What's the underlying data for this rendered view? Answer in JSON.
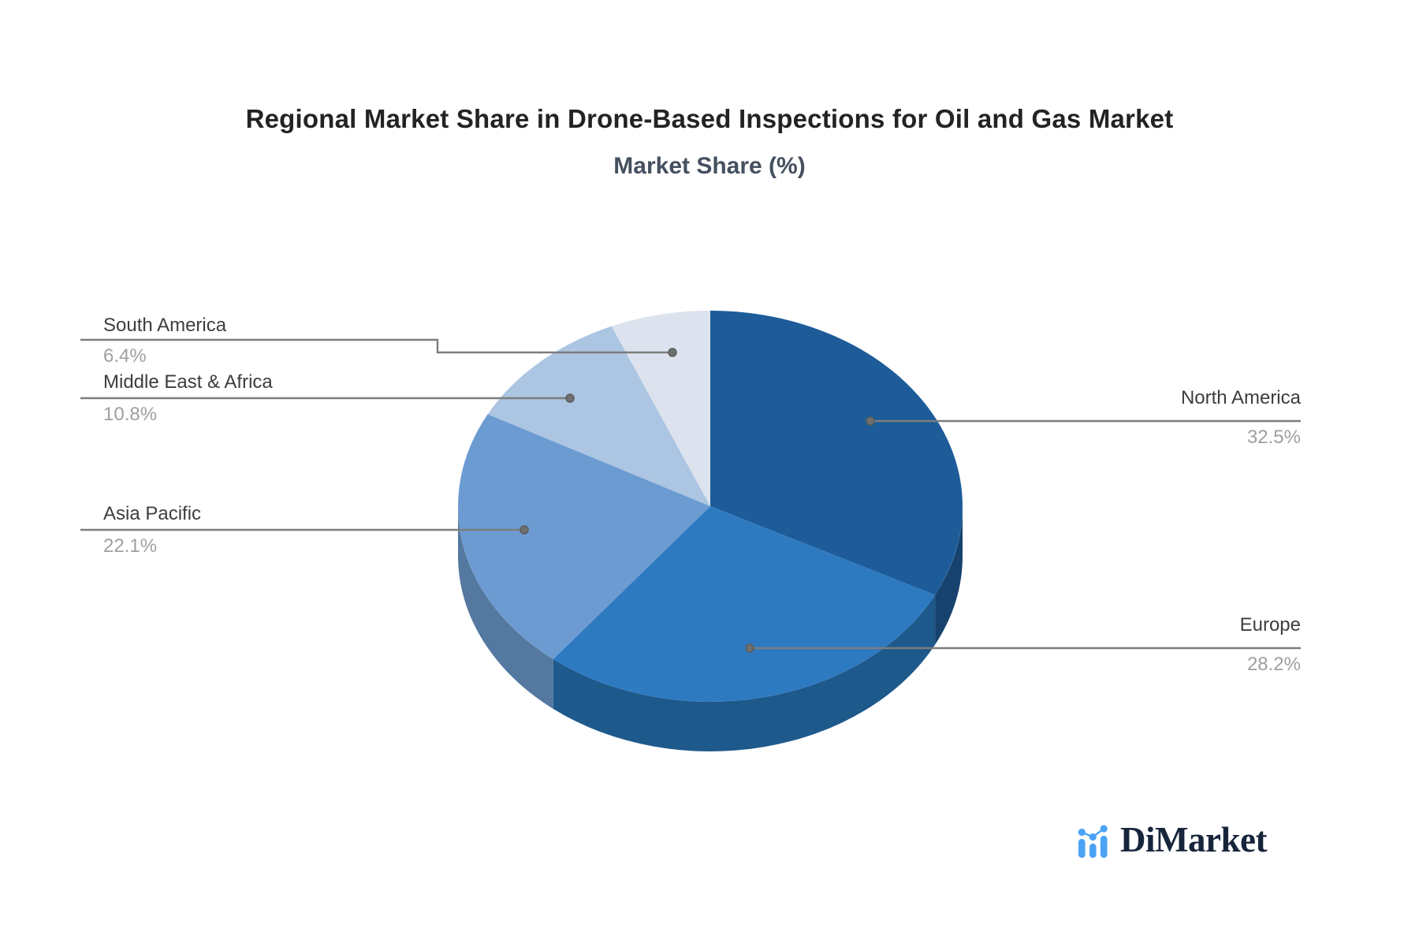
{
  "chart_data": {
    "type": "pie",
    "style": "3d",
    "title": "Regional Market Share in Drone-Based Inspections for Oil and Gas Market",
    "subtitle": "Market Share (%)",
    "unit": "%",
    "start_angle_deg": 0,
    "direction": "clockwise",
    "legend_position": "callout-labels",
    "slices": [
      {
        "name": "North America",
        "value": 32.5,
        "label": "32.5%",
        "color": "#1D5C99",
        "side_color": "#16426D"
      },
      {
        "name": "Europe",
        "value": 28.2,
        "label": "28.2%",
        "color": "#2E7AC1",
        "side_color": "#1E598C"
      },
      {
        "name": "Asia Pacific",
        "value": 22.1,
        "label": "22.1%",
        "color": "#6C9BD2",
        "side_color": "#54789F"
      },
      {
        "name": "Middle East & Africa",
        "value": 10.8,
        "label": "10.8%",
        "color": "#ABC5E2",
        "side_color": "#8BA4C2"
      },
      {
        "name": "South America",
        "value": 6.4,
        "label": "6.4%",
        "color": "#DCE3EE",
        "side_color": "#B4BDCD"
      }
    ]
  },
  "brand": {
    "name": "DiMarket"
  }
}
